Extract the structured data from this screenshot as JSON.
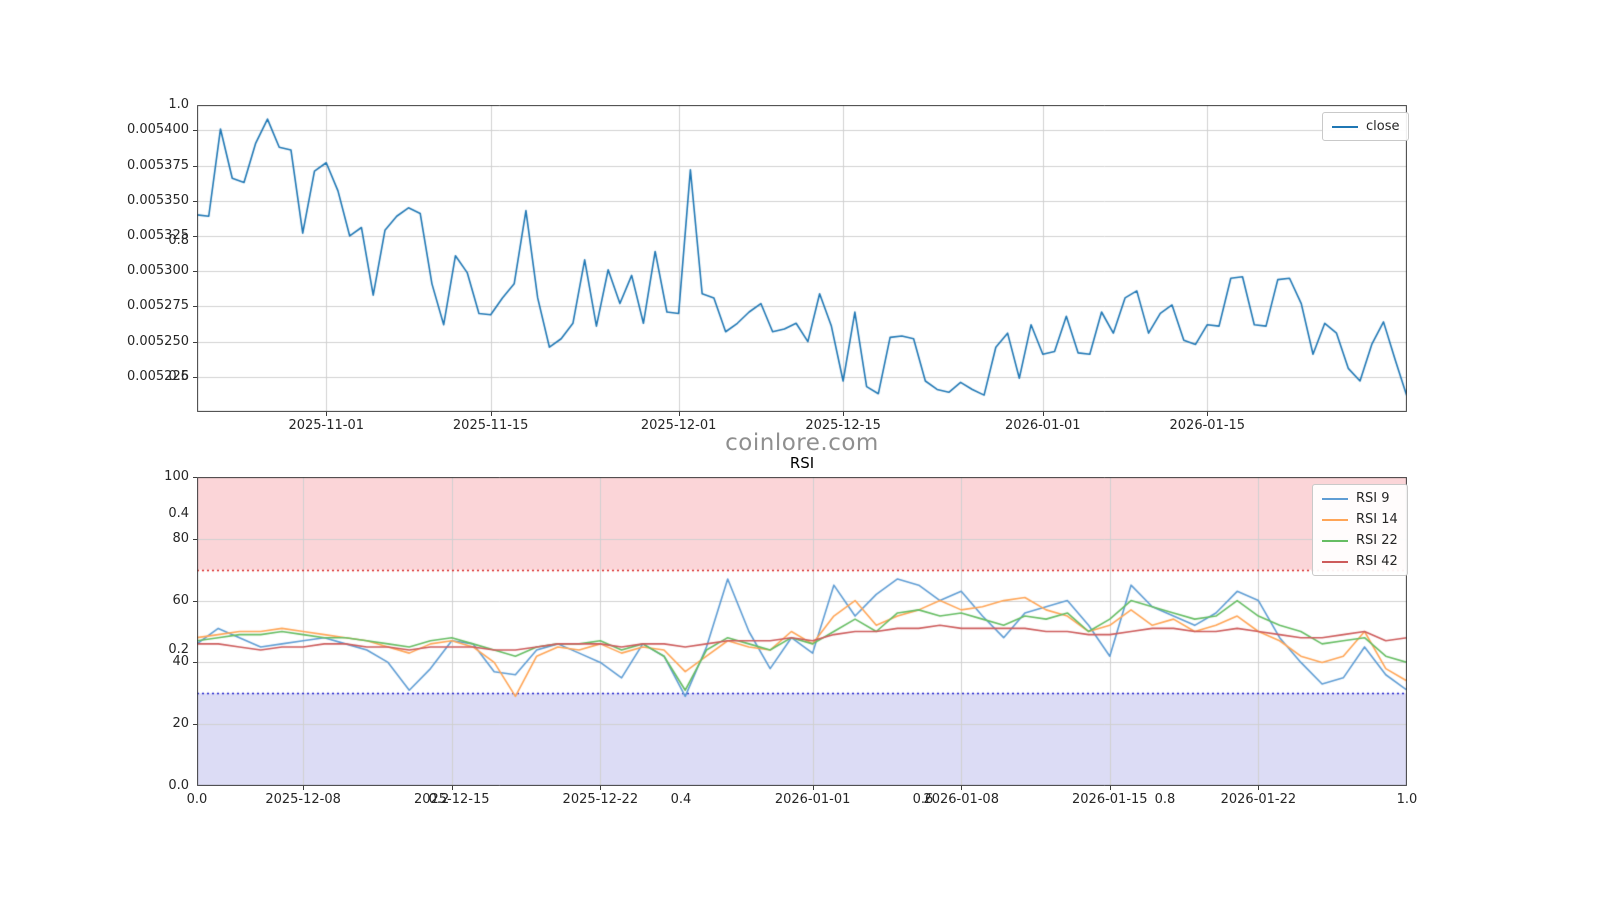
{
  "watermark": "coinlore.com",
  "overlay_axis": {
    "y_tick_labels": [
      "1.0",
      "0.8",
      "0.6",
      "0.4",
      "0.2",
      "0.0"
    ],
    "x_tick_labels": [
      "0.0",
      "0.2",
      "0.4",
      "0.6",
      "0.8",
      "1.0"
    ]
  },
  "chart_data": [
    {
      "type": "line",
      "title": "",
      "grid": true,
      "legend_position": "upper right",
      "x_tick_labels": [
        "2025-11-01",
        "2025-11-15",
        "2025-12-01",
        "2025-12-15",
        "2026-01-01",
        "2026-01-15"
      ],
      "x_tick_indices": [
        11,
        25,
        41,
        55,
        72,
        86
      ],
      "y_tick_labels": [
        "0.005400",
        "0.005375",
        "0.005350",
        "0.005325",
        "0.005300",
        "0.005275",
        "0.005250",
        "0.005225"
      ],
      "ylim": [
        0.0052,
        0.005418
      ],
      "series": [
        {
          "name": "close",
          "color": "#1f77b4",
          "values": [
            0.00534,
            0.005339,
            0.005401,
            0.005366,
            0.005363,
            0.005391,
            0.005408,
            0.005388,
            0.005386,
            0.005327,
            0.005371,
            0.005377,
            0.005357,
            0.005325,
            0.005331,
            0.005283,
            0.005329,
            0.005339,
            0.005345,
            0.005341,
            0.005291,
            0.005262,
            0.005311,
            0.005299,
            0.00527,
            0.005269,
            0.005281,
            0.005291,
            0.005343,
            0.005281,
            0.005246,
            0.005252,
            0.005263,
            0.005308,
            0.005261,
            0.005301,
            0.005277,
            0.005297,
            0.005263,
            0.005314,
            0.005271,
            0.00527,
            0.005372,
            0.005284,
            0.005281,
            0.005257,
            0.005263,
            0.005271,
            0.005277,
            0.005257,
            0.005259,
            0.005263,
            0.00525,
            0.005284,
            0.005261,
            0.005222,
            0.005271,
            0.005218,
            0.005213,
            0.005253,
            0.005254,
            0.005252,
            0.005222,
            0.005216,
            0.005214,
            0.005221,
            0.005216,
            0.005212,
            0.005246,
            0.005256,
            0.005224,
            0.005262,
            0.005241,
            0.005243,
            0.005268,
            0.005242,
            0.005241,
            0.005271,
            0.005256,
            0.005281,
            0.005286,
            0.005256,
            0.00527,
            0.005276,
            0.005251,
            0.005248,
            0.005262,
            0.005261,
            0.005295,
            0.005296,
            0.005262,
            0.005261,
            0.005294,
            0.005295,
            0.005277,
            0.005241,
            0.005263,
            0.005256,
            0.005231,
            0.005222,
            0.005248,
            0.005264,
            0.005237,
            0.005211
          ]
        }
      ]
    },
    {
      "type": "line",
      "title": "RSI",
      "grid": true,
      "legend_position": "upper right",
      "x_tick_labels": [
        "2025-12-08",
        "2025-12-15",
        "2025-12-22",
        "2026-01-01",
        "2026-01-08",
        "2026-01-15",
        "2026-01-22"
      ],
      "x_tick_indices": [
        5,
        12,
        19,
        29,
        36,
        43,
        50
      ],
      "y_tick_labels": [
        "100",
        "80",
        "60",
        "40",
        "20"
      ],
      "ylim": [
        0,
        100
      ],
      "bands": [
        {
          "from": 70,
          "to": 100,
          "color": "#fbd5d8",
          "meaning": "overbought"
        },
        {
          "from": 0,
          "to": 30,
          "color": "#dcdcf5",
          "meaning": "oversold"
        }
      ],
      "levels": [
        {
          "value": 70,
          "color": "#d62020"
        },
        {
          "value": 30,
          "color": "#2020cc"
        }
      ],
      "series": [
        {
          "name": "RSI 9",
          "color": "#5f9dd4",
          "values": [
            46,
            51,
            48,
            45,
            46,
            47,
            48,
            46,
            44,
            40,
            31,
            38,
            47,
            46,
            37,
            36,
            44,
            46,
            43,
            40,
            35,
            46,
            42,
            29,
            45,
            67,
            50,
            38,
            48,
            43,
            65,
            55,
            62,
            67,
            65,
            60,
            63,
            55,
            48,
            56,
            58,
            60,
            52,
            42,
            65,
            58,
            55,
            52,
            56,
            63,
            60,
            48,
            40,
            33,
            35,
            45,
            36,
            31
          ]
        },
        {
          "name": "RSI 14",
          "color": "#ffa556",
          "values": [
            48,
            49,
            50,
            50,
            51,
            50,
            49,
            48,
            47,
            45,
            43,
            46,
            47,
            45,
            40,
            29,
            42,
            45,
            44,
            46,
            43,
            45,
            44,
            37,
            42,
            47,
            45,
            44,
            50,
            46,
            55,
            60,
            52,
            55,
            57,
            60,
            57,
            58,
            60,
            61,
            57,
            55,
            50,
            52,
            57,
            52,
            54,
            50,
            52,
            55,
            50,
            47,
            42,
            40,
            42,
            50,
            38,
            34
          ]
        },
        {
          "name": "RSI 22",
          "color": "#66bd63",
          "values": [
            47,
            48,
            49,
            49,
            50,
            49,
            48,
            48,
            47,
            46,
            45,
            47,
            48,
            46,
            44,
            42,
            45,
            46,
            46,
            47,
            44,
            46,
            42,
            31,
            44,
            48,
            46,
            44,
            48,
            46,
            50,
            54,
            50,
            56,
            57,
            55,
            56,
            54,
            52,
            55,
            54,
            56,
            50,
            54,
            60,
            58,
            56,
            54,
            55,
            60,
            55,
            52,
            50,
            46,
            47,
            48,
            42,
            40
          ]
        },
        {
          "name": "RSI 42",
          "color": "#cd5c5c",
          "values": [
            46,
            46,
            45,
            44,
            45,
            45,
            46,
            46,
            45,
            45,
            44,
            45,
            45,
            45,
            44,
            44,
            45,
            46,
            46,
            46,
            45,
            46,
            46,
            45,
            46,
            47,
            47,
            47,
            48,
            47,
            49,
            50,
            50,
            51,
            51,
            52,
            51,
            51,
            51,
            51,
            50,
            50,
            49,
            49,
            50,
            51,
            51,
            50,
            50,
            51,
            50,
            49,
            48,
            48,
            49,
            50,
            47,
            48
          ]
        }
      ]
    }
  ]
}
